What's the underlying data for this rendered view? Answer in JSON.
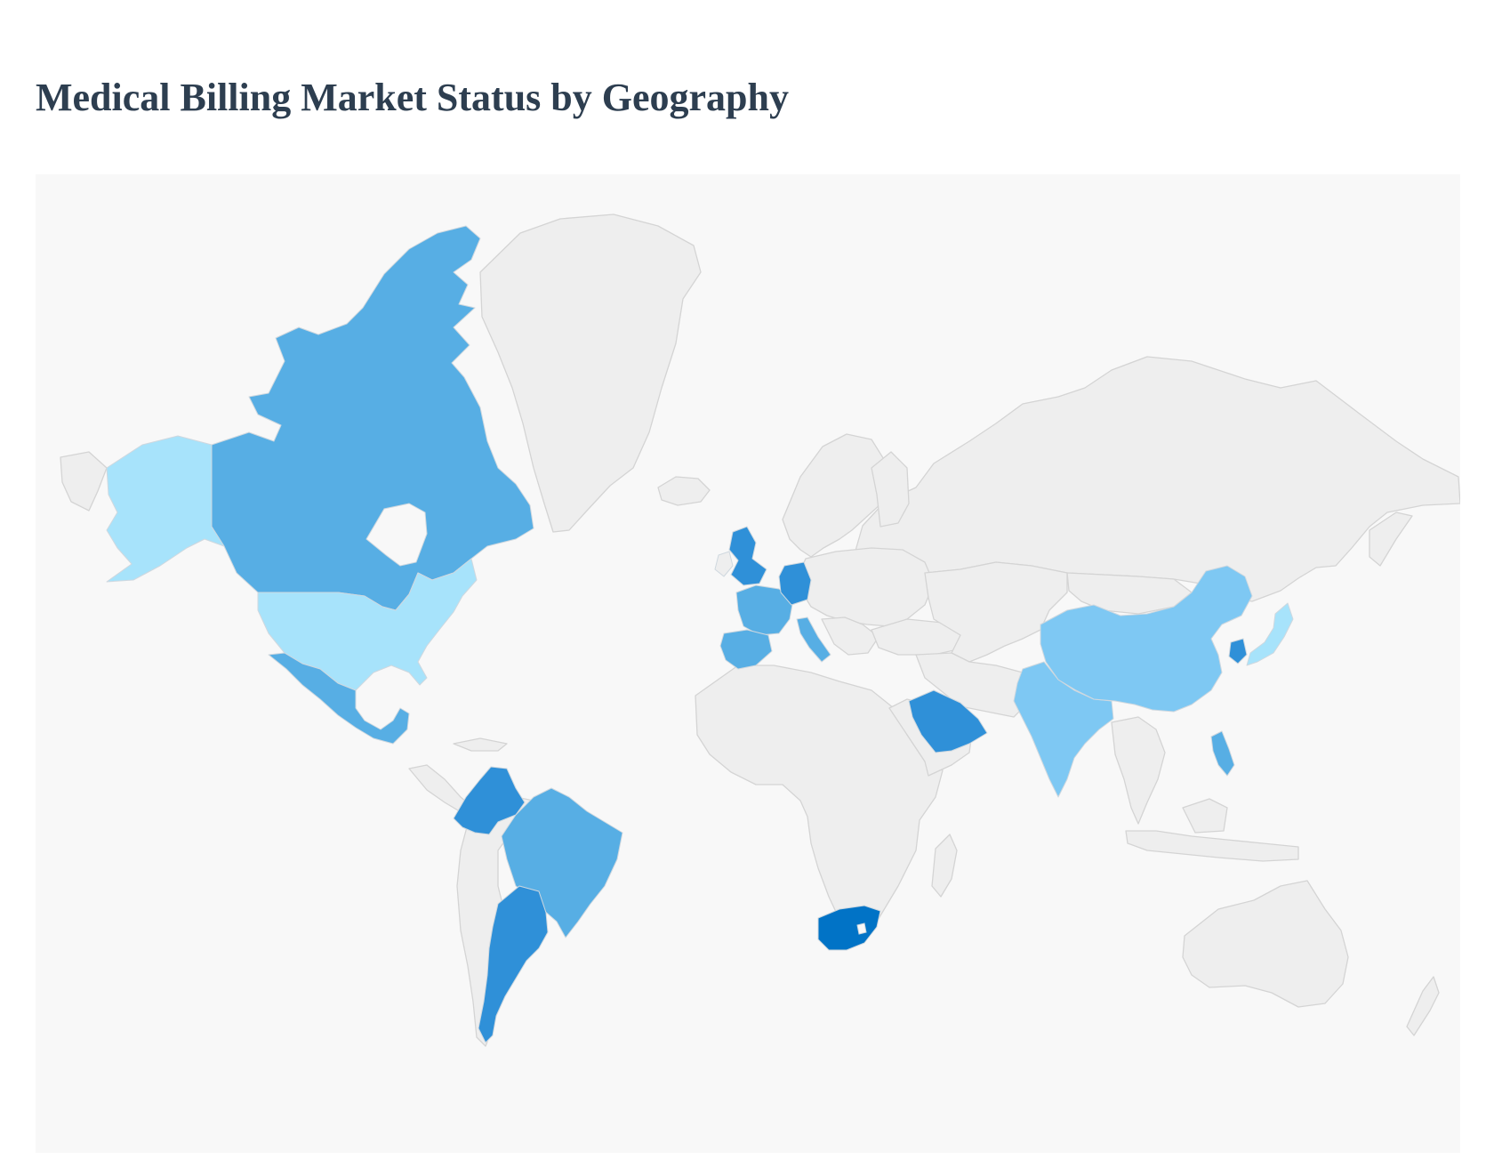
{
  "page": {
    "title": "Medical Billing Market Status by Geography"
  },
  "map": {
    "type": "choropleth-world",
    "base_color": "#eeeeee",
    "border_color": "#d4d4d4",
    "background_color": "#f8f8f8",
    "highlighted_countries": [
      {
        "id": "CAN",
        "level": 2,
        "color": "#57aee4"
      },
      {
        "id": "USA",
        "level": 1,
        "color": "#a7e3fb"
      },
      {
        "id": "MEX",
        "level": 2,
        "color": "#57aee4"
      },
      {
        "id": "COL",
        "level": 3,
        "color": "#2f90d8"
      },
      {
        "id": "BRA",
        "level": 2,
        "color": "#57aee4"
      },
      {
        "id": "ARG",
        "level": 3,
        "color": "#2f90d8"
      },
      {
        "id": "GBR",
        "level": 3,
        "color": "#2f90d8"
      },
      {
        "id": "FRA",
        "level": 2,
        "color": "#57aee4"
      },
      {
        "id": "ESP",
        "level": 2,
        "color": "#57aee4"
      },
      {
        "id": "DEU",
        "level": 3,
        "color": "#2f90d8"
      },
      {
        "id": "ITA",
        "level": 2,
        "color": "#57aee4"
      },
      {
        "id": "SAU",
        "level": 3,
        "color": "#2f90d8"
      },
      {
        "id": "ZAF",
        "level": 4,
        "color": "#0173c6"
      },
      {
        "id": "IND",
        "level": 1,
        "color": "#7ec8f3"
      },
      {
        "id": "CHN",
        "level": 1,
        "color": "#7ec8f3"
      },
      {
        "id": "KOR",
        "level": 3,
        "color": "#2f90d8"
      },
      {
        "id": "JPN",
        "level": 1,
        "color": "#a7e3fb"
      },
      {
        "id": "PHL",
        "level": 2,
        "color": "#57aee4"
      }
    ]
  }
}
